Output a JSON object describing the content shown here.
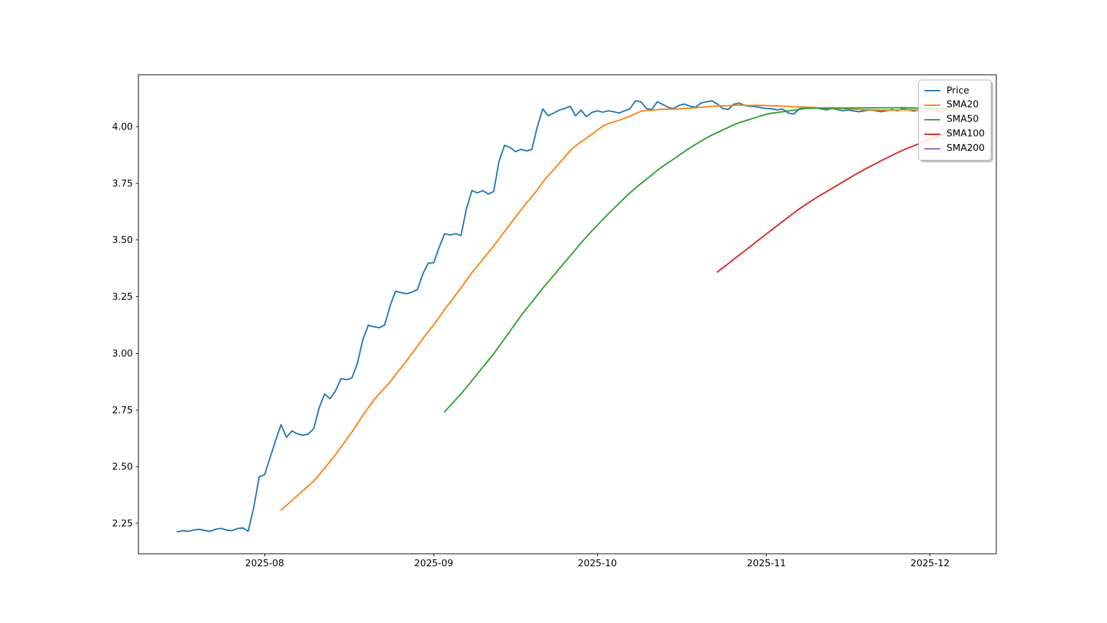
{
  "figure": {
    "background_color": "#ffffff",
    "axes_edge_color": "#000000",
    "tick_color": "#000000"
  },
  "chart_data": {
    "type": "line",
    "title": "",
    "xlabel": "",
    "ylabel": "",
    "grid": false,
    "x_start_date": "2025-07-16",
    "x_freq_days": 1,
    "n_points": 144,
    "xlim_day_index": [
      -7.15,
      150.15
    ],
    "ylim": [
      2.116,
      4.229
    ],
    "xticks": {
      "labels": [
        "2025-08",
        "2025-09",
        "2025-10",
        "2025-11",
        "2025-12"
      ],
      "day_indices": [
        16,
        47,
        77,
        108,
        138
      ]
    },
    "yticks": {
      "labels": [
        "2.25",
        "2.50",
        "2.75",
        "3.00",
        "3.25",
        "3.50",
        "3.75",
        "4.00"
      ],
      "values": [
        2.25,
        2.5,
        2.75,
        3.0,
        3.25,
        3.5,
        3.75,
        4.0
      ]
    },
    "legend": {
      "position": "upper right",
      "labels": [
        "Price",
        "SMA20",
        "SMA50",
        "SMA100",
        "SMA200"
      ]
    },
    "series": [
      {
        "name": "Price",
        "kind": "raw",
        "color": "#1f77b4",
        "values": [
          2.213,
          2.218,
          2.215,
          2.221,
          2.224,
          2.219,
          2.215,
          2.224,
          2.228,
          2.221,
          2.218,
          2.227,
          2.23,
          2.216,
          2.32,
          2.455,
          2.465,
          2.54,
          2.615,
          2.685,
          2.63,
          2.658,
          2.645,
          2.639,
          2.644,
          2.668,
          2.76,
          2.821,
          2.8,
          2.835,
          2.888,
          2.884,
          2.891,
          2.955,
          3.06,
          3.124,
          3.118,
          3.113,
          3.125,
          3.21,
          3.274,
          3.268,
          3.263,
          3.27,
          3.281,
          3.35,
          3.398,
          3.4,
          3.468,
          3.528,
          3.522,
          3.528,
          3.52,
          3.638,
          3.718,
          3.708,
          3.718,
          3.703,
          3.714,
          3.85,
          3.918,
          3.908,
          3.89,
          3.9,
          3.893,
          3.9,
          4.0,
          4.078,
          4.048,
          4.06,
          4.073,
          4.08,
          4.09,
          4.048,
          4.073,
          4.044,
          4.063,
          4.07,
          4.064,
          4.07,
          4.066,
          4.06,
          4.07,
          4.08,
          4.114,
          4.11,
          4.08,
          4.076,
          4.11,
          4.098,
          4.085,
          4.08,
          4.094,
          4.1,
          4.09,
          4.086,
          4.104,
          4.11,
          4.114,
          4.1,
          4.08,
          4.076,
          4.099,
          4.104,
          4.094,
          4.09,
          4.089,
          4.084,
          4.08,
          4.079,
          4.074,
          4.078,
          4.06,
          4.056,
          4.078,
          4.084,
          4.08,
          4.084,
          4.079,
          4.074,
          4.08,
          4.076,
          4.07,
          4.074,
          4.069,
          4.066,
          4.07,
          4.074,
          4.071,
          4.066,
          4.07,
          4.076,
          4.07,
          4.079,
          4.074,
          4.069,
          4.074,
          4.07,
          4.076,
          4.07,
          4.064,
          4.074,
          4.069,
          4.12
        ]
      },
      {
        "name": "SMA20",
        "kind": "sma",
        "window": 20,
        "color": "#ff7f0e",
        "visible_in_plot": true
      },
      {
        "name": "SMA50",
        "kind": "sma",
        "window": 50,
        "color": "#2ca02c",
        "visible_in_plot": true
      },
      {
        "name": "SMA100",
        "kind": "sma",
        "window": 100,
        "color": "#d62728",
        "visible_in_plot": true
      },
      {
        "name": "SMA200",
        "kind": "sma",
        "window": 200,
        "color": "#9467bd",
        "visible_in_plot": false
      }
    ]
  }
}
